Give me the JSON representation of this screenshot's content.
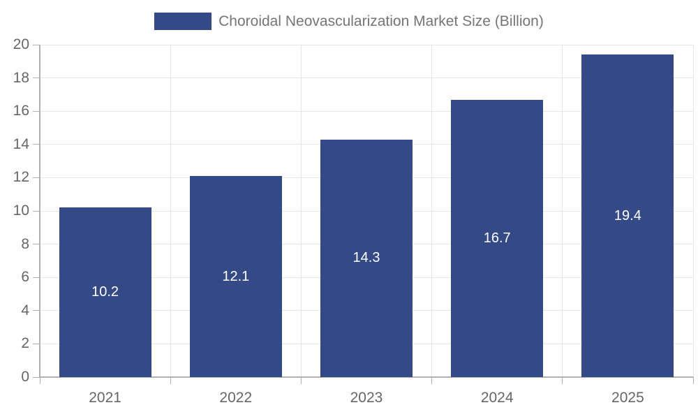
{
  "legend": {
    "label": "Choroidal Neovascularization Market Size (Billion)"
  },
  "colors": {
    "bar": "#344a87",
    "grid": "#e6e6e6",
    "axis": "#b0b0b0",
    "tick_text": "#666666",
    "legend_text": "#757575",
    "data_label": "#ffffff",
    "background": "#ffffff"
  },
  "chart_data": {
    "type": "bar",
    "title": "Choroidal Neovascularization Market Size (Billion)",
    "categories": [
      "2021",
      "2022",
      "2023",
      "2024",
      "2025"
    ],
    "values": [
      10.2,
      12.1,
      14.3,
      16.7,
      19.4
    ],
    "xlabel": "",
    "ylabel": "",
    "ylim": [
      0,
      20
    ],
    "ytick_step": 2,
    "grid": "both",
    "legend_position": "top-center",
    "data_labels": "inside-center-white"
  }
}
